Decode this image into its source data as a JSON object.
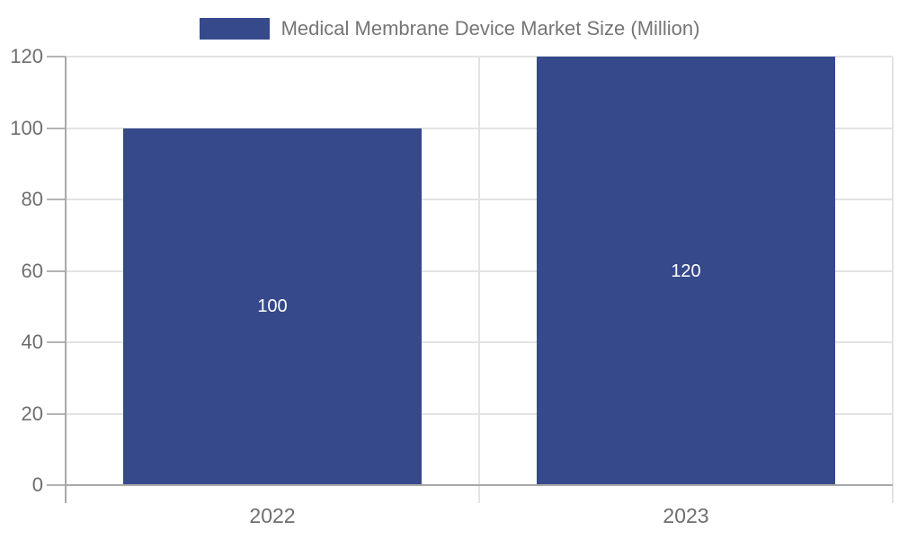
{
  "legend": {
    "label": "Medical Membrane Device Market Size (Million)"
  },
  "chart_data": {
    "type": "bar",
    "title": "Medical Membrane Device Market Size (Million)",
    "categories": [
      "2022",
      "2023"
    ],
    "values": [
      100,
      120
    ],
    "value_labels": [
      "100",
      "120"
    ],
    "xlabel": "",
    "ylabel": "",
    "ylim": [
      0,
      120
    ],
    "yticks": [
      0,
      20,
      40,
      60,
      80,
      100,
      120
    ],
    "grid": true,
    "legend_position": "top-center",
    "colors": {
      "bar": "#36498b",
      "grid": "#e3e3e3",
      "axis": "#a8a8a8",
      "tick": "#b3b3b3",
      "tick_label": "#6e6e6e",
      "legend_text": "#757575",
      "value_label": "#ffffff",
      "background": "#ffffff"
    }
  }
}
